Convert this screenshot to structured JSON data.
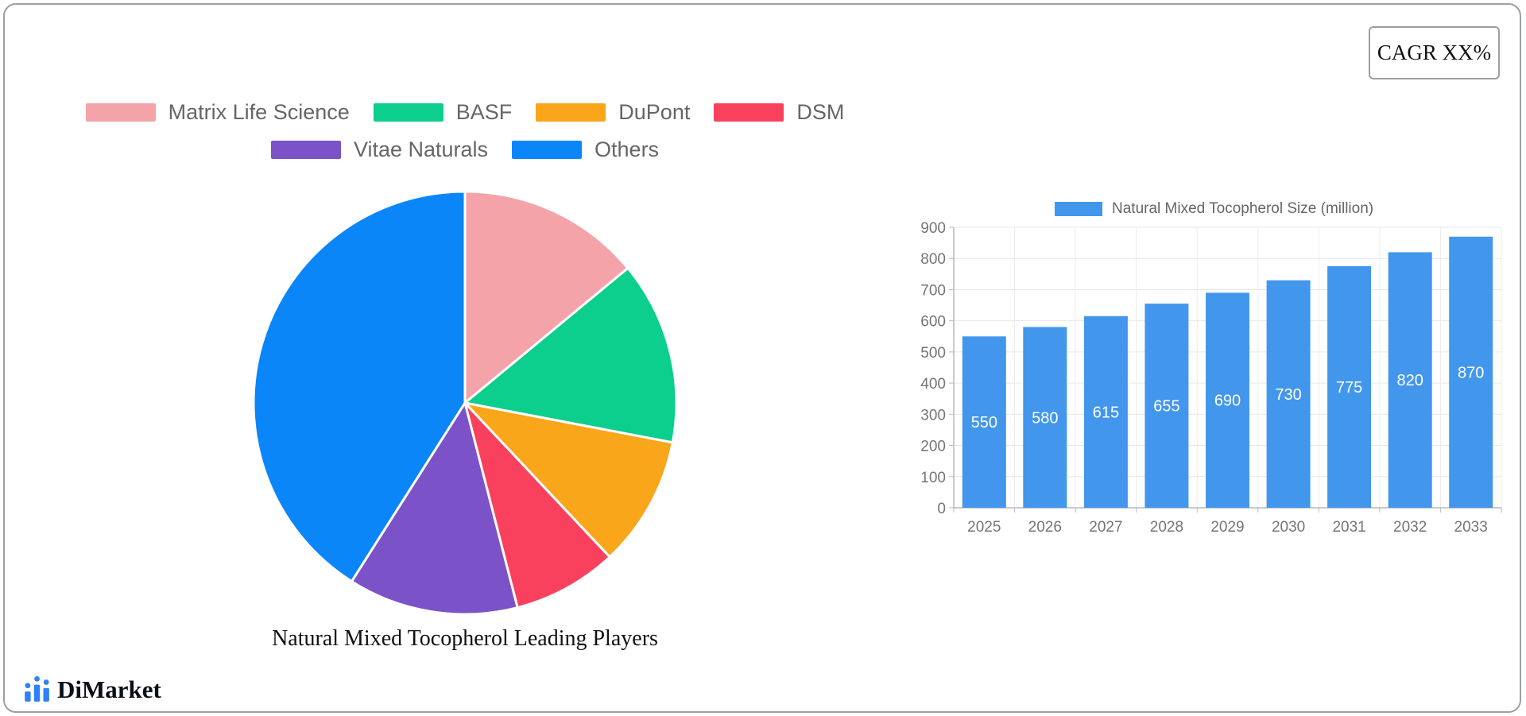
{
  "cagr": {
    "label": "CAGR XX%"
  },
  "logo": {
    "text": "DiMarket",
    "icon": "bar-chart-icon",
    "icon_color": "#2f81f7"
  },
  "pie": {
    "title": "Natural Mixed Tocopherol Leading Players",
    "legend_rows": [
      [
        {
          "label": "Matrix Life Science",
          "color": "#f4a4a8"
        },
        {
          "label": "BASF",
          "color": "#0cce8d"
        },
        {
          "label": "DuPont",
          "color": "#faa61b"
        },
        {
          "label": "DSM",
          "color": "#f9415e"
        }
      ],
      [
        {
          "label": "Vitae Naturals",
          "color": "#7b52c8"
        },
        {
          "label": "Others",
          "color": "#0b86f8"
        }
      ]
    ]
  },
  "bar": {
    "legend_label": "Natural Mixed Tocopherol Size (million)",
    "bar_color": "#4297ec"
  },
  "chart_data": [
    {
      "type": "pie",
      "title": "Natural Mixed Tocopherol Leading Players",
      "labels": [
        "Matrix Life Science",
        "BASF",
        "DuPont",
        "DSM",
        "Vitae Naturals",
        "Others"
      ],
      "values": [
        14,
        14,
        10,
        8,
        13,
        41
      ],
      "unit": "percent",
      "colors": [
        "#f4a4a8",
        "#0cce8d",
        "#faa61b",
        "#f9415e",
        "#7b52c8",
        "#0b86f8"
      ],
      "start_angle_deg": 0,
      "direction": "clockwise",
      "slice_border_color": "#ffffff",
      "legend_position": "top"
    },
    {
      "type": "bar",
      "series_name": "Natural Mixed Tocopherol Size (million)",
      "categories": [
        "2025",
        "2026",
        "2027",
        "2028",
        "2029",
        "2030",
        "2031",
        "2032",
        "2033"
      ],
      "values": [
        550,
        580,
        615,
        655,
        690,
        730,
        775,
        820,
        870
      ],
      "ylim": [
        0,
        900
      ],
      "ytick_step": 100,
      "bar_color": "#4297ec",
      "value_label_color": "#ffffff",
      "grid": true,
      "legend_position": "top"
    }
  ]
}
